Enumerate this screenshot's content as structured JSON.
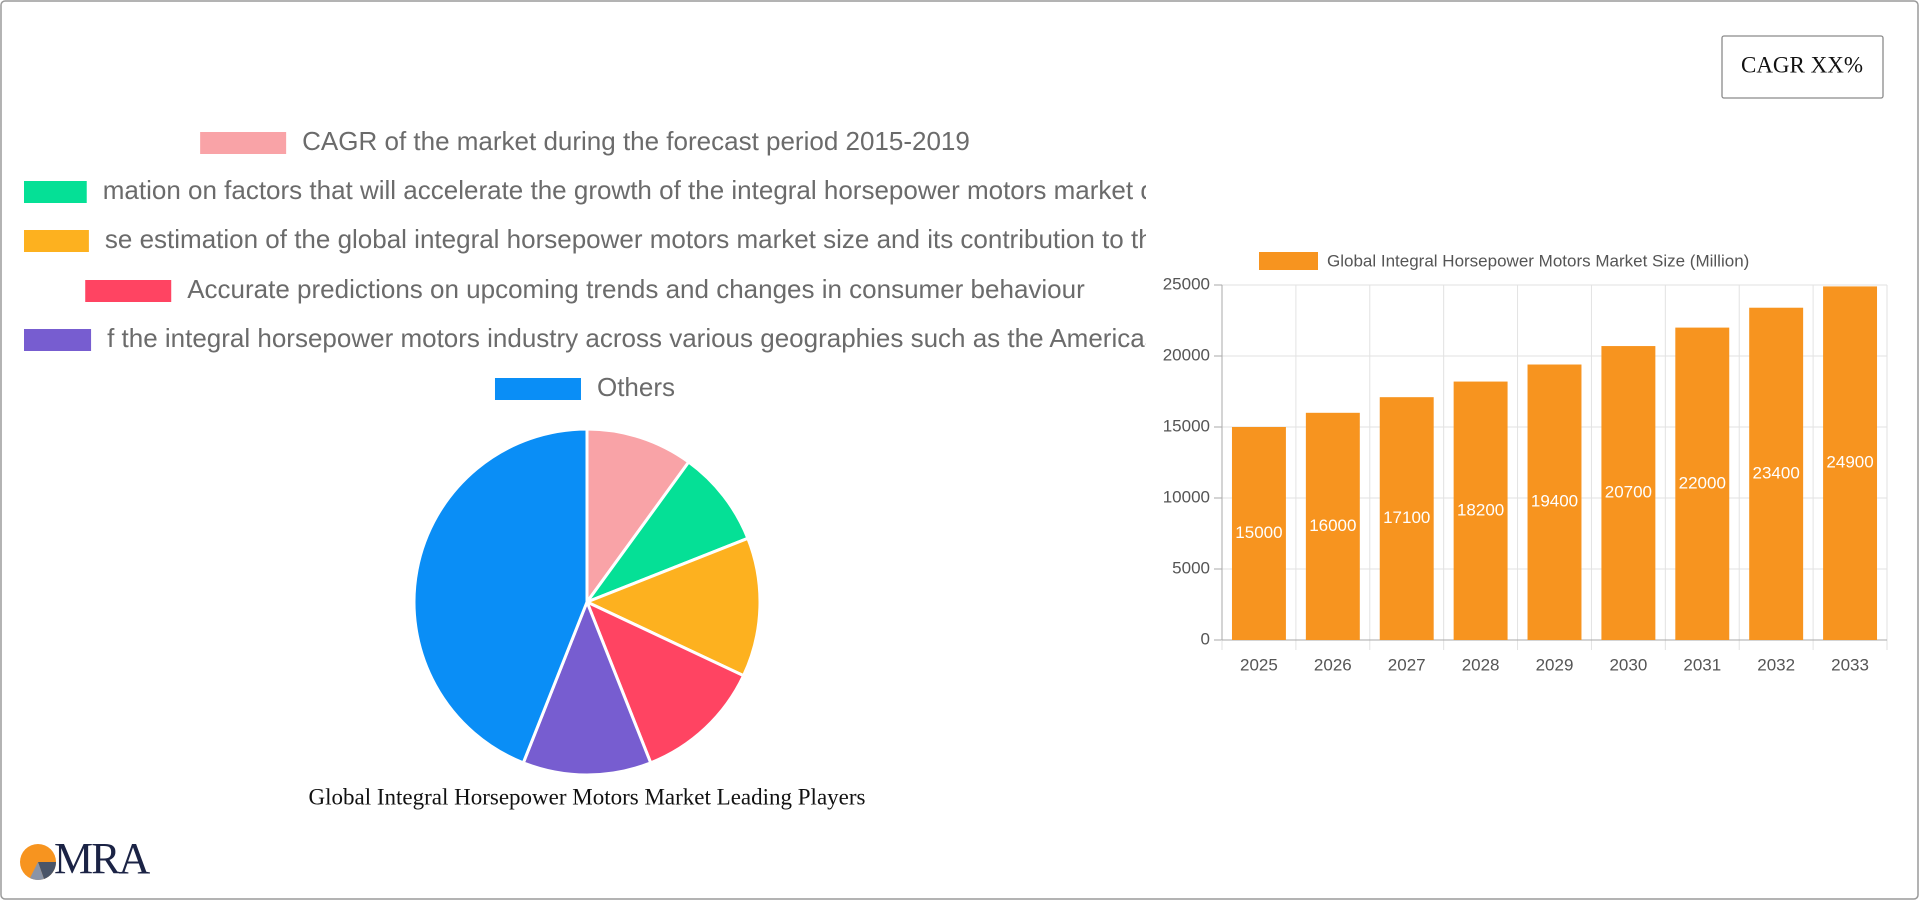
{
  "cagr_button": "CAGR XX%",
  "logo": "MRA",
  "chart_data": [
    {
      "type": "pie",
      "title": "Global Integral Horsepower Motors Market Leading Players",
      "categories": [
        "CAGR of the market during the forecast period 2015-2019",
        "mation on factors that will accelerate the growth of the integral horsepower motors  market du",
        "se estimation of the global integral horsepower motors  market size and its contribution to the",
        "Accurate predictions on upcoming trends and changes in consumer behaviour",
        "f the integral horsepower motors  industry across various geographies such as the Americas,",
        "Others"
      ],
      "values": [
        10,
        9,
        13,
        12,
        12,
        44
      ],
      "colors": [
        "#f9a3a7",
        "#05e096",
        "#fdb11f",
        "#ff4462",
        "#775dd0",
        "#0a8ef6"
      ]
    },
    {
      "type": "bar",
      "categories": [
        "2025",
        "2026",
        "2027",
        "2028",
        "2029",
        "2030",
        "2031",
        "2032",
        "2033"
      ],
      "series": [
        {
          "name": "Global Integral Horsepower Motors Market Size (Million)",
          "color": "#f7941f",
          "values": [
            15000,
            16000,
            17100,
            18200,
            19400,
            20700,
            22000,
            23400,
            24900
          ]
        }
      ],
      "ylim": [
        0,
        25000
      ],
      "yticks": [
        0,
        5000,
        10000,
        15000,
        20000,
        25000
      ],
      "grid": true
    }
  ]
}
